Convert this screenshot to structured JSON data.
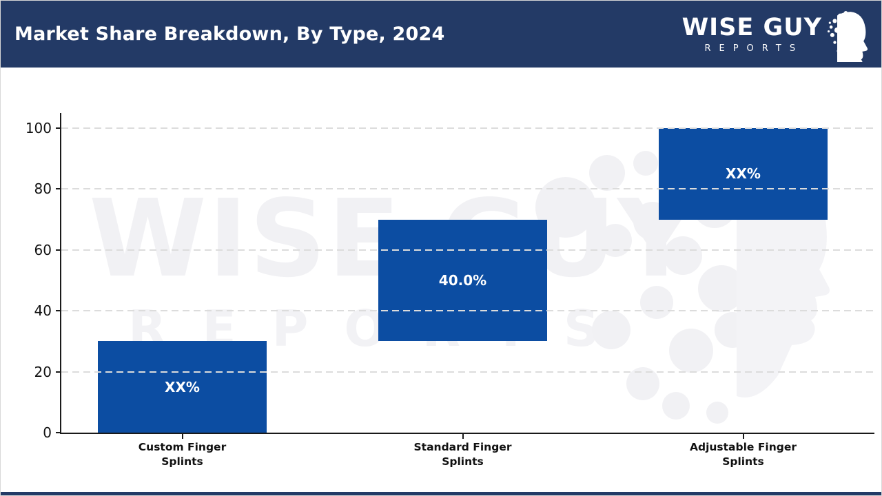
{
  "header": {
    "title": "Market Share Breakdown, By Type, 2024",
    "logo": {
      "brand": "WISE GUY",
      "sub": "REPORTS"
    }
  },
  "watermark": {
    "line1": "WISE GUY",
    "line2": "REPORTS"
  },
  "chart_data": {
    "type": "bar",
    "variant": "floating-segment (waterfall style market share)",
    "title": "Market Share Breakdown, By Type, 2024",
    "categories": [
      "Custom Finger Splints",
      "Standard Finger Splints",
      "Adjustable Finger Splints"
    ],
    "category_lines": [
      [
        "Custom Finger",
        "Splints"
      ],
      [
        "Standard Finger",
        "Splints"
      ],
      [
        "Adjustable Finger",
        "Splints"
      ]
    ],
    "series": [
      {
        "name": "Market share (%)",
        "segments": [
          {
            "category": "Custom Finger Splints",
            "from": 0,
            "to": 30,
            "label": "XX%"
          },
          {
            "category": "Standard Finger Splints",
            "from": 30,
            "to": 70,
            "label": "40.0%"
          },
          {
            "category": "Adjustable Finger Splints",
            "from": 70,
            "to": 100,
            "label": "XX%"
          }
        ]
      }
    ],
    "yticks": [
      0,
      20,
      40,
      60,
      80,
      100
    ],
    "ylim": [
      0,
      105
    ],
    "xlabel": "",
    "ylabel": "",
    "legend": null,
    "grid": {
      "axis": "y",
      "style": "dashed",
      "drawn_over_bars": true
    }
  },
  "colors": {
    "header_bg": "#233a66",
    "footer_bg": "#233a66",
    "bar": "#0c4da2",
    "bar_label": "#ffffff",
    "grid": "#dcdcdc",
    "axis": "#1a1a1a",
    "tick_text": "#111111",
    "title_text": "#ffffff",
    "watermark": "#f1f1f4"
  }
}
